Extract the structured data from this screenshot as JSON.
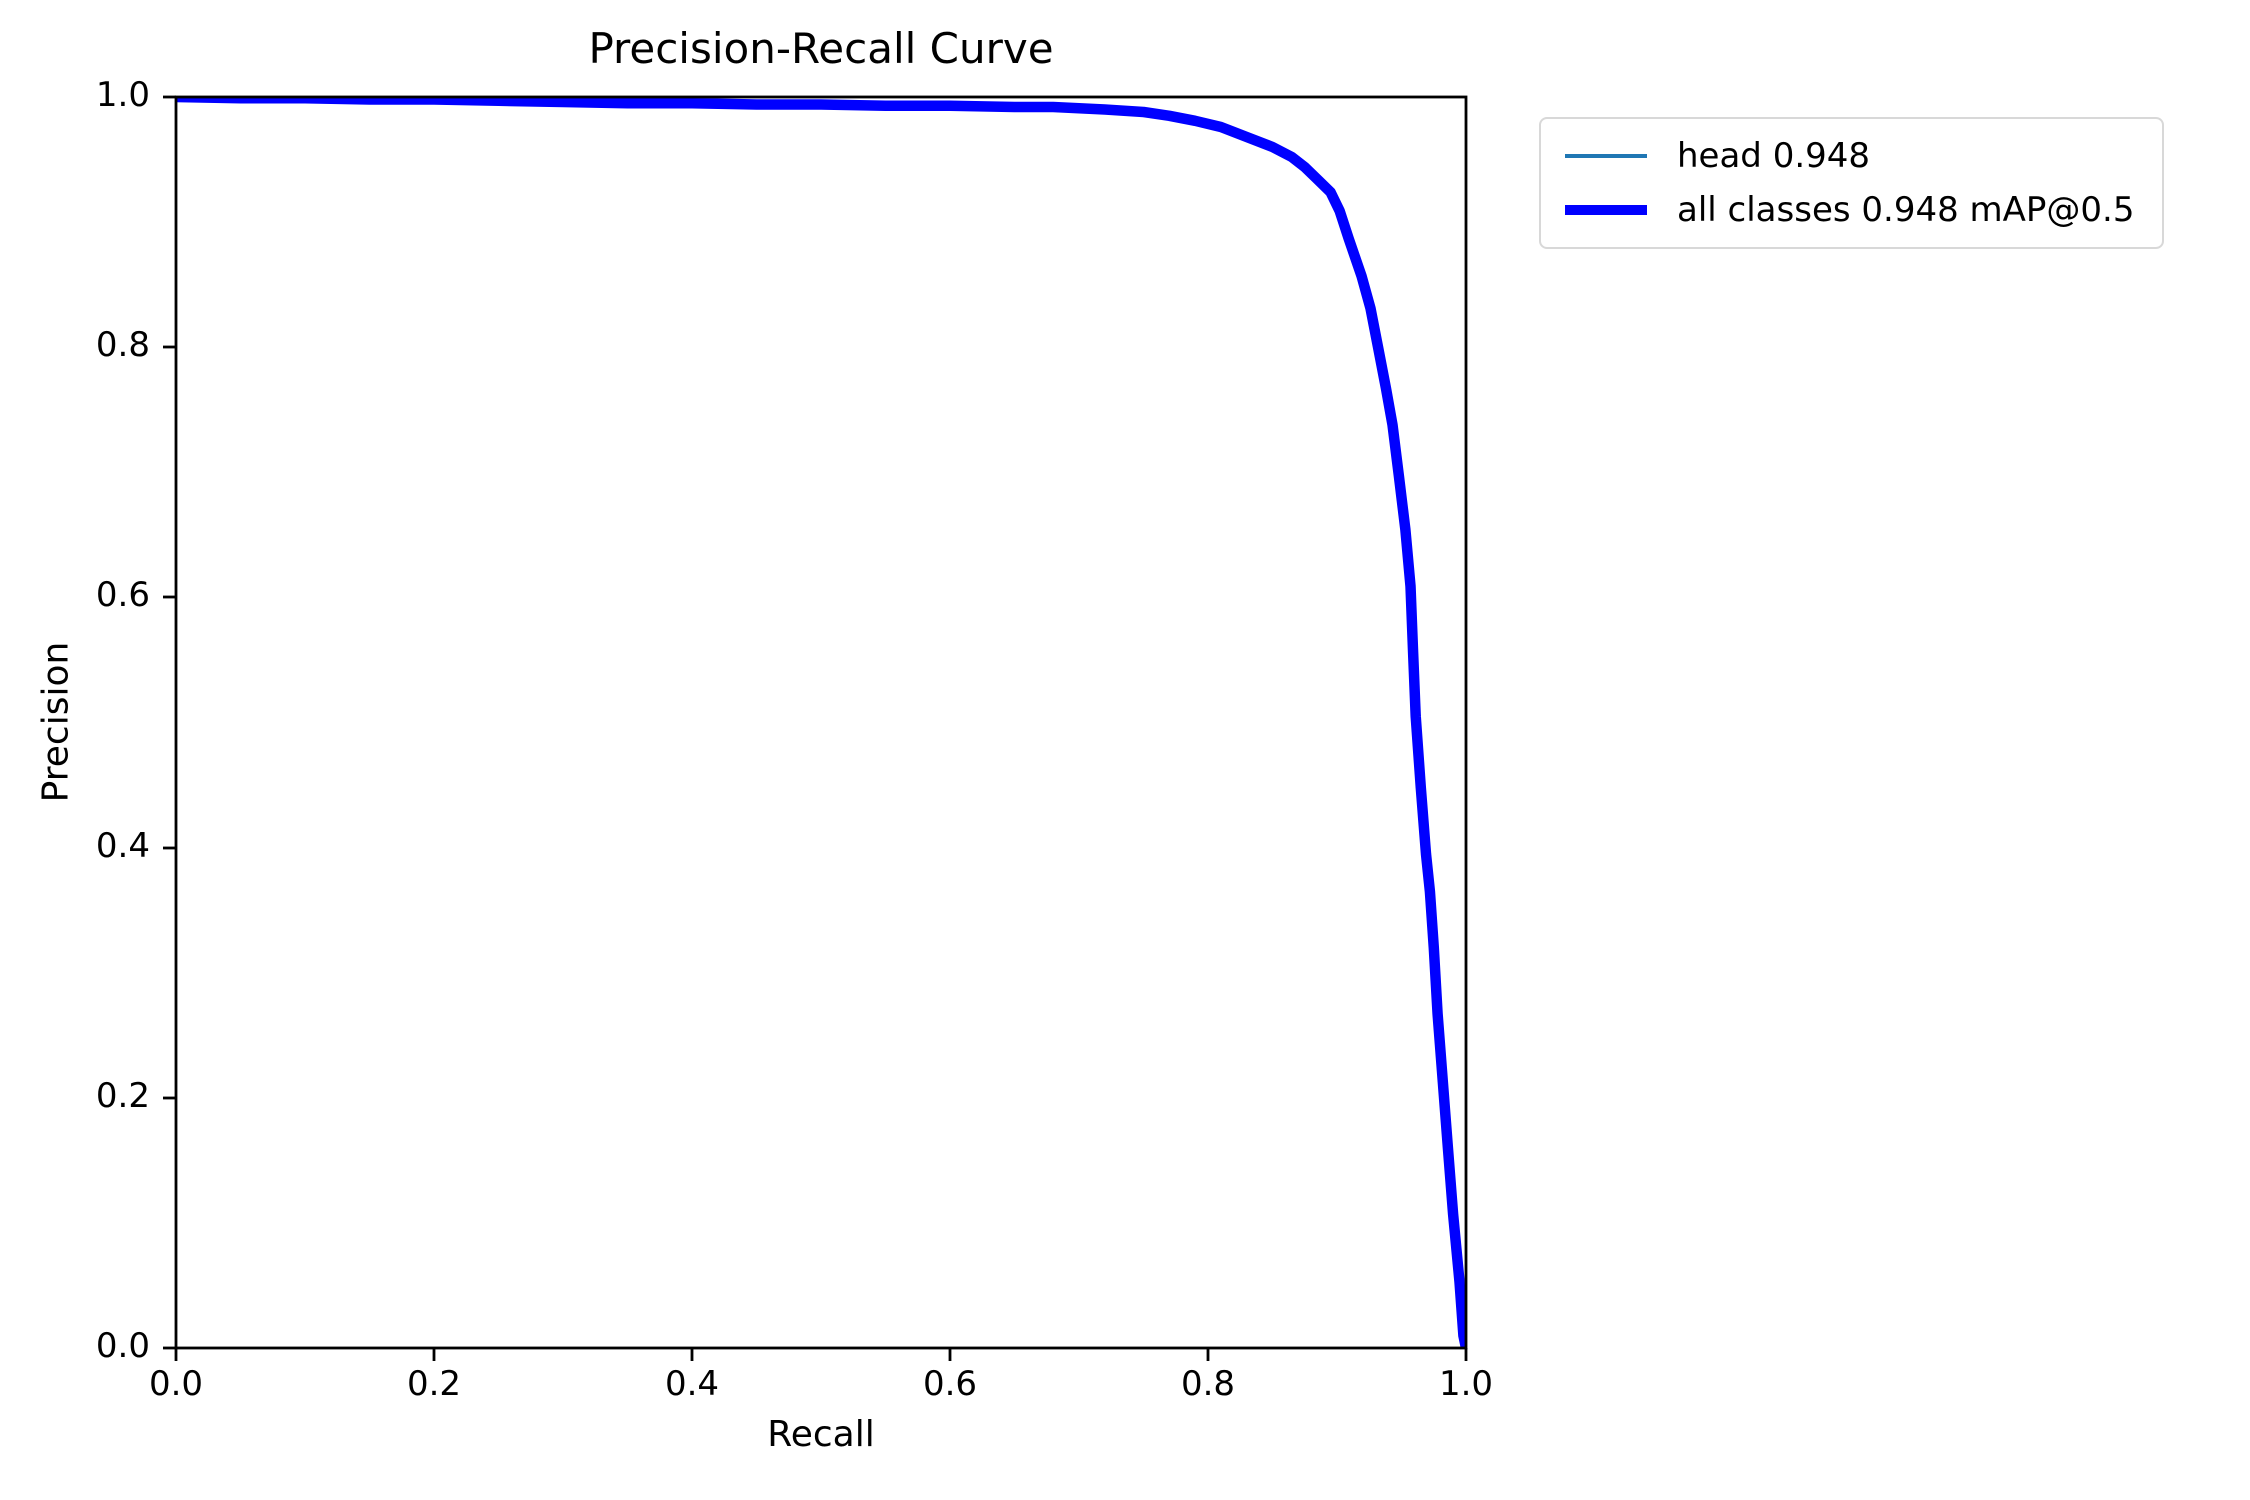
{
  "chart_data": {
    "type": "line",
    "title": "Precision-Recall Curve",
    "xlabel": "Recall",
    "ylabel": "Precision",
    "xlim": [
      0.0,
      1.0
    ],
    "ylim": [
      0.0,
      1.0
    ],
    "x_tick_labels": [
      "0.0",
      "0.2",
      "0.4",
      "0.6",
      "0.8",
      "1.0"
    ],
    "y_tick_labels": [
      "0.0",
      "0.2",
      "0.4",
      "0.6",
      "0.8",
      "1.0"
    ],
    "grid": false,
    "legend_position": "outside upper right",
    "axis_color": "#000000",
    "series": [
      {
        "name": "head 0.948",
        "color": "#1f77b4",
        "linewidth": 3.2,
        "x": [
          0.0,
          0.05,
          0.1,
          0.15,
          0.2,
          0.25,
          0.3,
          0.35,
          0.4,
          0.45,
          0.5,
          0.55,
          0.6,
          0.65,
          0.68,
          0.7,
          0.72,
          0.75,
          0.77,
          0.79,
          0.81,
          0.83,
          0.85,
          0.865,
          0.875,
          0.885,
          0.895,
          0.902,
          0.909,
          0.919,
          0.926,
          0.932,
          0.938,
          0.943,
          0.948,
          0.953,
          0.957,
          0.959,
          0.961,
          0.965,
          0.969,
          0.972,
          0.975,
          0.978,
          0.982,
          0.986,
          0.99,
          0.995,
          0.998,
          1.0
        ],
        "y": [
          1.0,
          0.999,
          0.999,
          0.998,
          0.998,
          0.997,
          0.996,
          0.995,
          0.995,
          0.994,
          0.994,
          0.993,
          0.993,
          0.992,
          0.992,
          0.991,
          0.99,
          0.988,
          0.985,
          0.981,
          0.976,
          0.968,
          0.96,
          0.952,
          0.944,
          0.934,
          0.924,
          0.909,
          0.887,
          0.857,
          0.831,
          0.799,
          0.767,
          0.738,
          0.697,
          0.654,
          0.609,
          0.556,
          0.505,
          0.448,
          0.395,
          0.365,
          0.32,
          0.267,
          0.213,
          0.16,
          0.107,
          0.053,
          0.01,
          0.0
        ]
      },
      {
        "name": "all classes 0.948 mAP@0.5",
        "color": "#0000ff",
        "linewidth": 10.5,
        "x": [
          0.0,
          0.05,
          0.1,
          0.15,
          0.2,
          0.25,
          0.3,
          0.35,
          0.4,
          0.45,
          0.5,
          0.55,
          0.6,
          0.65,
          0.68,
          0.7,
          0.72,
          0.75,
          0.77,
          0.79,
          0.81,
          0.83,
          0.85,
          0.865,
          0.875,
          0.885,
          0.895,
          0.902,
          0.909,
          0.919,
          0.926,
          0.932,
          0.938,
          0.943,
          0.948,
          0.953,
          0.957,
          0.959,
          0.961,
          0.965,
          0.969,
          0.972,
          0.975,
          0.978,
          0.982,
          0.986,
          0.99,
          0.995,
          0.998,
          1.0
        ],
        "y": [
          1.0,
          0.999,
          0.999,
          0.998,
          0.998,
          0.997,
          0.996,
          0.995,
          0.995,
          0.994,
          0.994,
          0.993,
          0.993,
          0.992,
          0.992,
          0.991,
          0.99,
          0.988,
          0.985,
          0.981,
          0.976,
          0.968,
          0.96,
          0.952,
          0.944,
          0.934,
          0.924,
          0.909,
          0.887,
          0.857,
          0.831,
          0.799,
          0.767,
          0.738,
          0.697,
          0.654,
          0.609,
          0.556,
          0.505,
          0.448,
          0.395,
          0.365,
          0.32,
          0.267,
          0.213,
          0.16,
          0.107,
          0.053,
          0.01,
          0.0
        ]
      }
    ]
  }
}
